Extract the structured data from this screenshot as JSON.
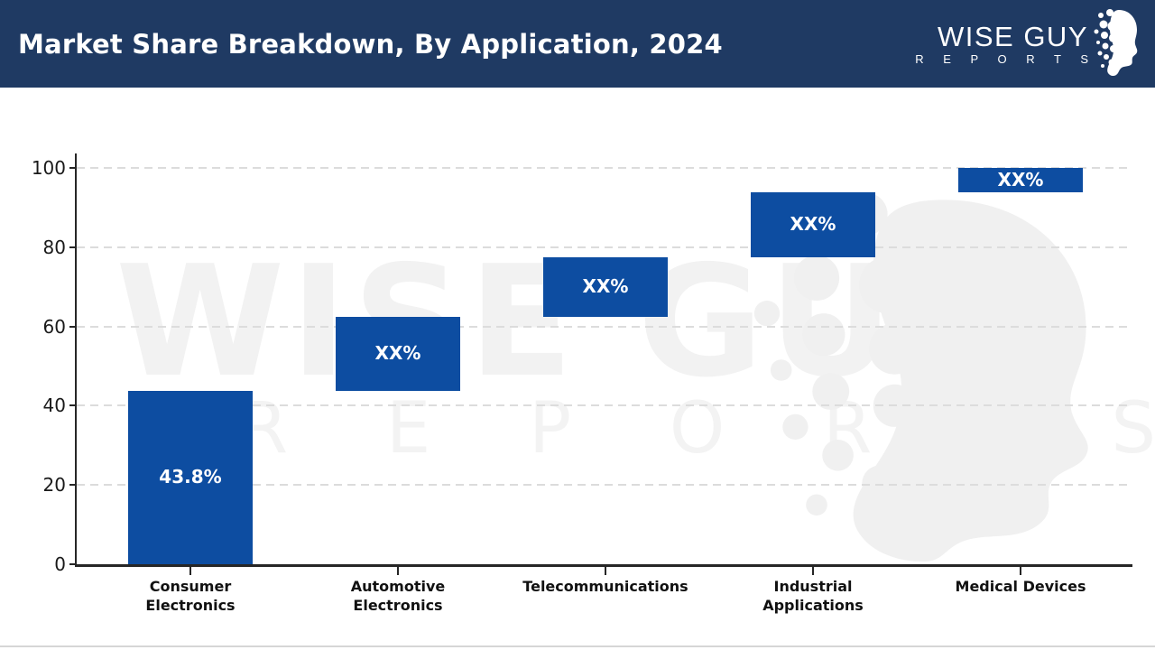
{
  "header": {
    "title": "Market Share Breakdown, By Application, 2024",
    "background_color": "#1f3a63",
    "logo": {
      "line1": "WISE GUY",
      "line2": "R E P O R T S",
      "icon": "wise-guy-face-logo"
    }
  },
  "watermark": {
    "line1": "WISE GUY",
    "line2": "R E P O R T S",
    "icon": "wise-guy-face-watermark"
  },
  "chart_data": {
    "type": "bar",
    "subtype": "waterfall",
    "title": "",
    "xlabel": "",
    "ylabel": "",
    "categories": [
      "Consumer Electronics",
      "Automotive Electronics",
      "Telecommunications",
      "Industrial Applications",
      "Medical Devices"
    ],
    "category_lines": [
      [
        "Consumer",
        "Electronics"
      ],
      [
        "Automotive",
        "Electronics"
      ],
      [
        "Telecommunications"
      ],
      [
        "Industrial",
        "Applications"
      ],
      [
        "Medical Devices"
      ]
    ],
    "segments": [
      {
        "category": "Consumer Electronics",
        "start": 0,
        "end": 43.8,
        "label": "43.8%"
      },
      {
        "category": "Automotive Electronics",
        "start": 43.8,
        "end": 62.5,
        "label": "XX%"
      },
      {
        "category": "Telecommunications",
        "start": 62.5,
        "end": 77.5,
        "label": "XX%"
      },
      {
        "category": "Industrial Applications",
        "start": 77.5,
        "end": 93.8,
        "label": "XX%"
      },
      {
        "category": "Medical Devices",
        "start": 93.8,
        "end": 100,
        "label": "XX%"
      }
    ],
    "ylim": [
      0,
      100
    ],
    "yticks": [
      "0",
      "20",
      "40",
      "60",
      "80",
      "100"
    ],
    "grid": true,
    "gridline_style": "dashed",
    "legend": false,
    "bar_color": "#0d4da1",
    "bar_label_color": "#ffffff",
    "axis_color": "#262626"
  }
}
